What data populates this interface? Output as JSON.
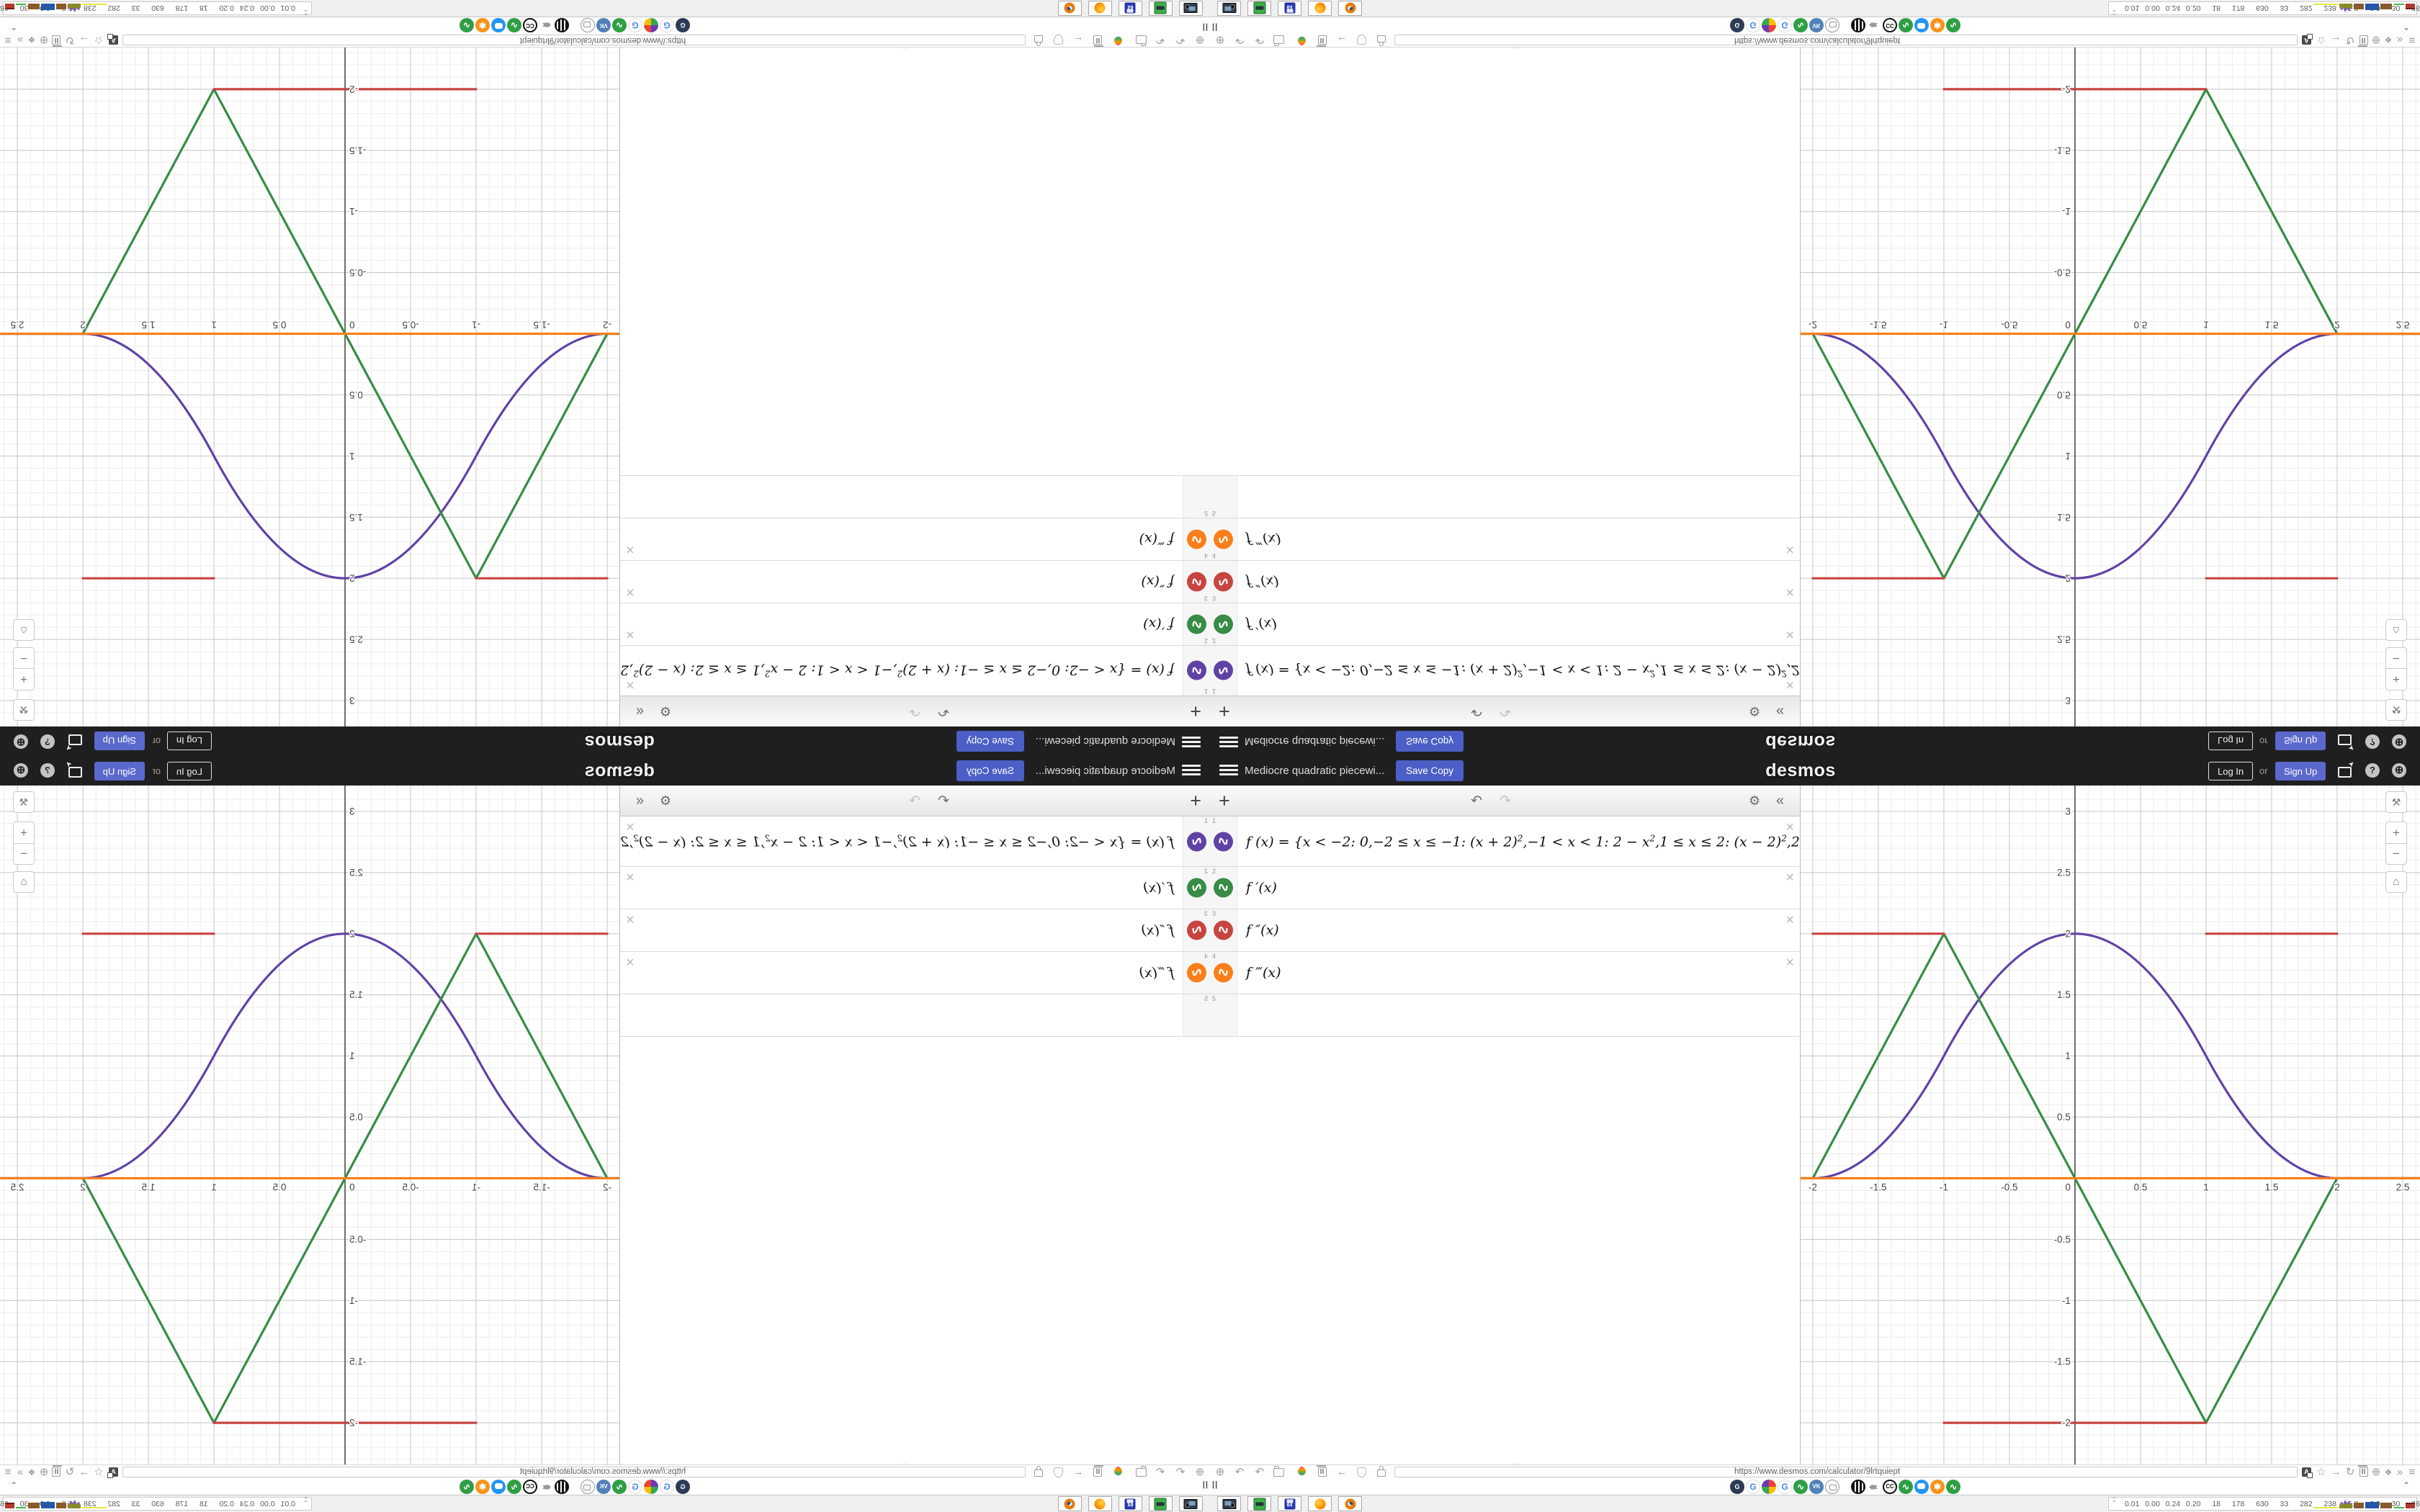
{
  "header": {
    "title": "Mediocre quadratic piecewi...",
    "save_copy": "Save Copy",
    "logo": "desmos",
    "log_in": "Log In",
    "or": "or",
    "sign_up": "Sign Up",
    "help_icon": "?",
    "language_icon": "⊕",
    "bg_color": "#1f1f1f",
    "save_copy_color": "#4b5fc6",
    "sign_up_color": "#5b69cd"
  },
  "toolbar": {
    "add": "+",
    "undo": "↶",
    "redo": "↷",
    "settings": "⚙",
    "collapse": "«"
  },
  "expressions": {
    "rows": [
      {
        "number": "1",
        "latex": "f (x) = {x < −2: 0,−2 ≤ x ≤ −1: (x + 2)^2,−1 < x < 1: 2 − x^2,1 ≤ x ≤ 2: (x − 2)^2,2 < x: 0}",
        "color": "#6042a6",
        "icon": "∿"
      },
      {
        "number": "2",
        "latex": "f ′(x)",
        "color": "#388c46",
        "icon": "∿"
      },
      {
        "number": "3",
        "latex": "f ″(x)",
        "color": "#c74440",
        "icon": "∿"
      },
      {
        "number": "4",
        "latex": "f ‴(x)",
        "color": "#fa7e19",
        "icon": "∿"
      },
      {
        "number": "5",
        "latex": "",
        "color": "",
        "icon": ""
      }
    ],
    "delete_glyph": "×",
    "watermark_top": "powered by",
    "watermark_bottom": "desmos",
    "keypad_icon": "⌨",
    "keypad_caret": "▲"
  },
  "graph_controls": {
    "wrench": "⚒",
    "zoom_in": "+",
    "zoom_out": "−",
    "home": "⌂"
  },
  "chart_data": {
    "type": "line",
    "title": "",
    "xlabel": "x",
    "ylabel": "y",
    "xlim": [
      -2.093,
      2.632
    ],
    "ylim": [
      -2.341,
      3.212
    ],
    "grid": {
      "minor_step": 0.1,
      "major_step": 0.5,
      "on": true
    },
    "x_ticks": [
      -2,
      -1.5,
      -1,
      -0.5,
      0,
      0.5,
      1,
      1.5,
      2,
      2.5
    ],
    "y_ticks": [
      -2,
      -1.5,
      -1,
      -0.5,
      0.5,
      1,
      1.5,
      2,
      2.5,
      3
    ],
    "series": [
      {
        "name": "f(x)",
        "color": "#6042a6",
        "ops": [
          [
            "M",
            -2.093,
            0
          ],
          [
            "L",
            -2,
            0
          ],
          [
            "Q",
            -1.5,
            0,
            -1,
            1
          ],
          [
            "Q",
            -0.5,
            2,
            0,
            2
          ],
          [
            "Q",
            0.5,
            2,
            1,
            1
          ],
          [
            "Q",
            1.5,
            0,
            2,
            0
          ],
          [
            "L",
            2.632,
            0
          ]
        ],
        "description": "piecewise: 0 | (x+2)^2 | 2-x^2 | (x-2)^2 | 0"
      },
      {
        "name": "f'(x)",
        "color": "#388c46",
        "ops": [
          [
            "M",
            -2.093,
            0
          ],
          [
            "L",
            -2,
            0
          ],
          [
            "L",
            -1,
            2
          ],
          [
            "L",
            1,
            -2
          ],
          [
            "L",
            2,
            0
          ],
          [
            "L",
            2.632,
            0
          ]
        ],
        "description": "triangle wave peaks (-1,2) and (1,-2)"
      },
      {
        "name": "f''(x)",
        "color": "#c74440",
        "ops": [
          [
            "M",
            -2,
            2
          ],
          [
            "L",
            -1,
            2
          ],
          [
            "M",
            -1,
            -2
          ],
          [
            "L",
            1,
            -2
          ],
          [
            "M",
            1,
            2
          ],
          [
            "L",
            2,
            2
          ]
        ],
        "description": "steps: 2 on [-2,-1], -2 on (-1,1), 2 on [1,2]"
      },
      {
        "name": "f'''(x)",
        "color": "#fa7e19",
        "ops": [
          [
            "M",
            -2.093,
            0
          ],
          [
            "L",
            2.632,
            0
          ]
        ],
        "description": "0 everywhere"
      }
    ],
    "legend_position": "none",
    "axis_color": "#4d4d4d"
  },
  "browser": {
    "url": "https://www.desmos.com/calculator/9lrtquiept",
    "nav_left": {
      "globe": "⊕",
      "back_arc1": "↶",
      "back_arc2": "↶",
      "left_arrow": "←"
    },
    "nav_right": {
      "translate_letter": "A",
      "star": "☆",
      "forward": "→",
      "reload": "↻",
      "globe": "⊕",
      "puzzle": "❖",
      "chevrons": "»",
      "menu": "≡"
    },
    "pause": "||",
    "caret": "⌃",
    "bookmarks": [
      {
        "label": "G",
        "style": "dark"
      },
      {
        "label": "G",
        "style": "google"
      },
      {
        "label": "",
        "style": "pinwheel"
      },
      {
        "label": "G",
        "style": "google"
      },
      {
        "label": "∿",
        "style": "desmos"
      },
      {
        "label": "VK",
        "style": "vk"
      },
      {
        "label": "",
        "style": "thumb"
      },
      {
        "label": "",
        "style": "trash"
      },
      {
        "label": "",
        "style": "fish"
      },
      {
        "label": "CC",
        "style": "cc"
      },
      {
        "label": "∿",
        "style": "desmos"
      },
      {
        "label": "",
        "style": "chat"
      },
      {
        "label": "✱",
        "style": "gear"
      },
      {
        "label": "∿",
        "style": "desmos"
      }
    ],
    "tray": {
      "expand_top": "⌃",
      "expand_bottom": "⌃",
      "stats": "0.01 0.00 0.24 0.20  18  178  630  33  282  238  5.8  2.9  30  26  48485934"
    }
  },
  "taskbar": {
    "apps": [
      {
        "name": "screenshot-tool",
        "label": ""
      },
      {
        "name": "disk-utility",
        "label": ""
      },
      {
        "name": "vice-c64-emulator",
        "label": "64"
      },
      {
        "name": "firefox",
        "label": ""
      },
      {
        "name": "blender",
        "label": ""
      }
    ]
  }
}
